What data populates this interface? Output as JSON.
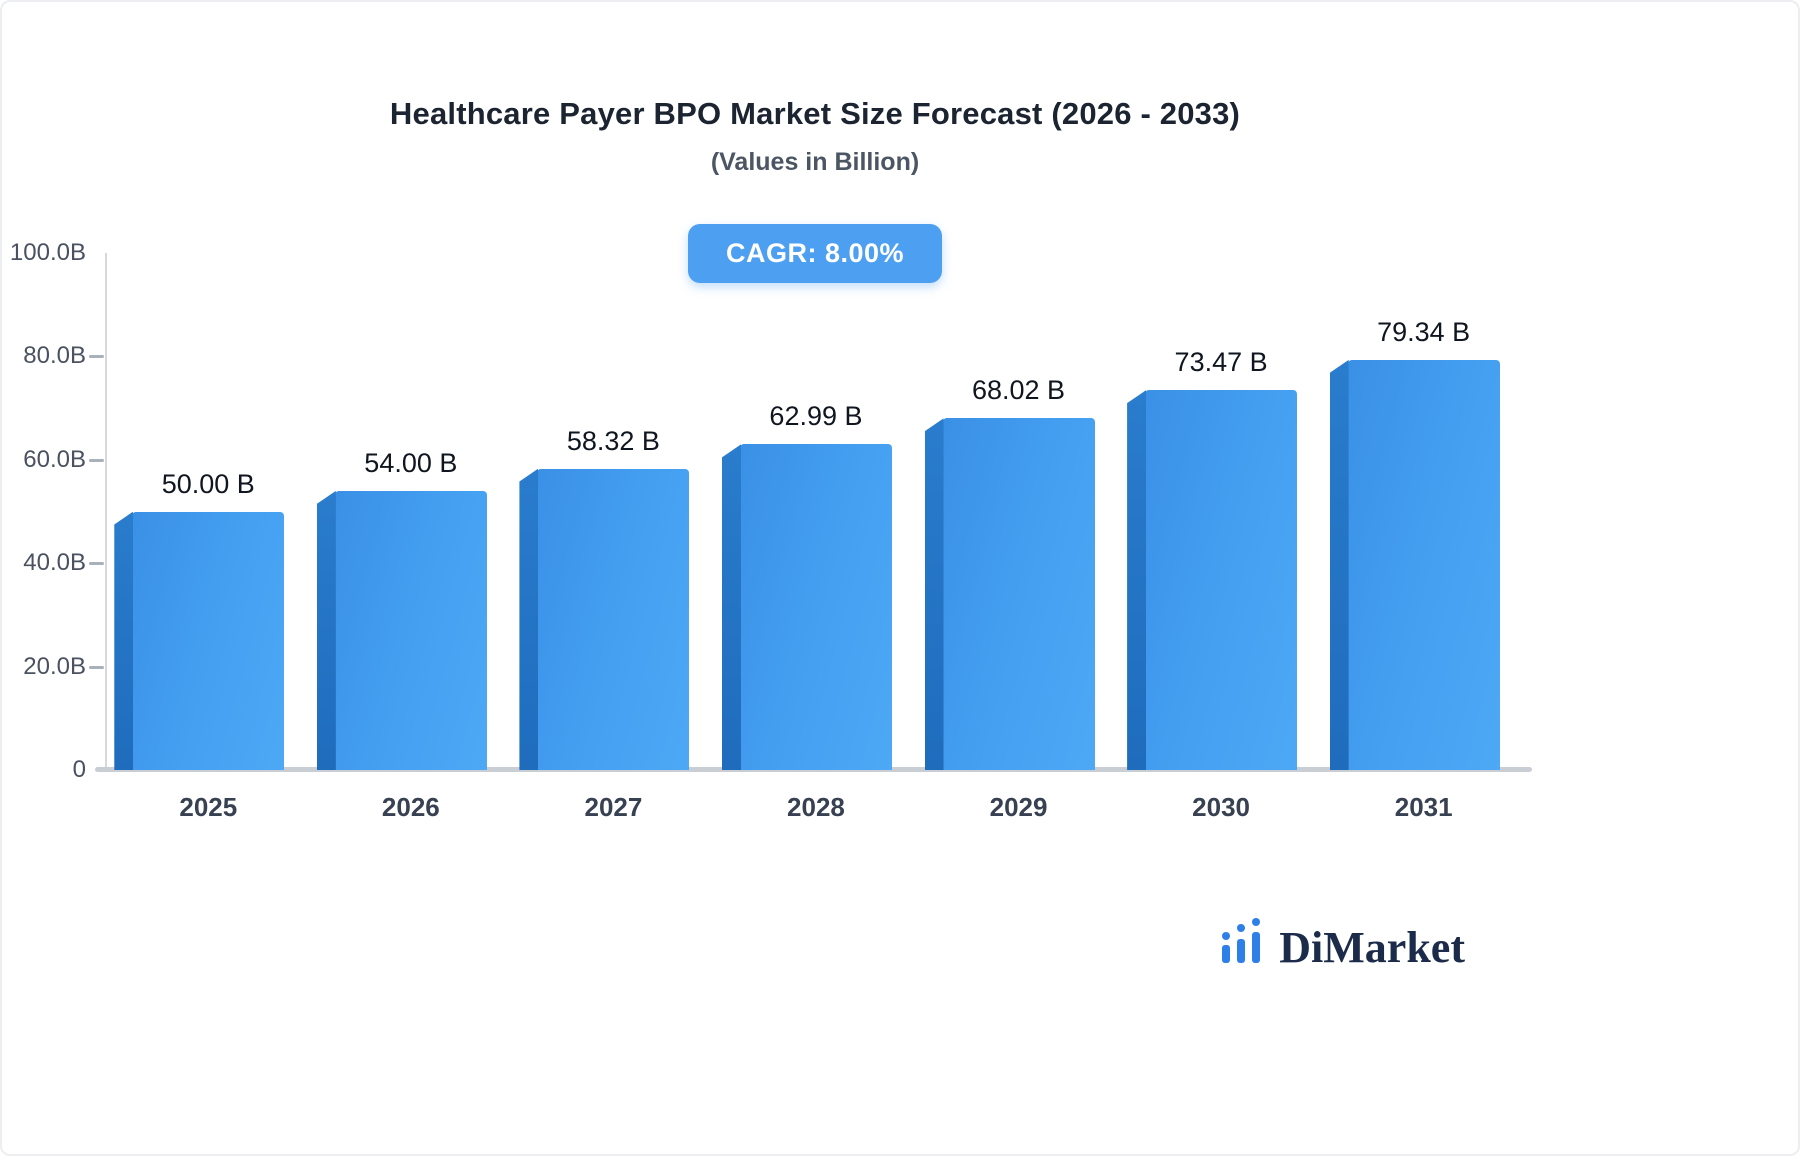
{
  "header": {
    "title": "Healthcare Payer BPO Market Size Forecast (2026 - 2033)",
    "subtitle": "(Values in Billion)"
  },
  "badge": {
    "label": "CAGR: 8.00%"
  },
  "chart_data": {
    "type": "bar",
    "title": "Healthcare Payer BPO Market Size Forecast (2026 - 2033)",
    "subtitle": "(Values in Billion)",
    "categories": [
      "2025",
      "2026",
      "2027",
      "2028",
      "2029",
      "2030",
      "2031"
    ],
    "values": [
      50.0,
      54.0,
      58.32,
      62.99,
      68.02,
      73.47,
      79.34
    ],
    "value_labels": [
      "50.00 B",
      "54.00 B",
      "58.32 B",
      "62.99 B",
      "68.02 B",
      "73.47 B",
      "79.34 B"
    ],
    "xlabel": "",
    "ylabel": "",
    "ylim": [
      0,
      100
    ],
    "y_ticks": [
      "100.0B",
      "80.0B",
      "60.0B",
      "40.0B",
      "20.0B",
      "0"
    ],
    "grid": false,
    "legend": false,
    "cagr": "8.00%",
    "bar_color": "#45a0f2",
    "bar_side_color": "#2272c3"
  },
  "logo": {
    "text": "DiMarket",
    "icon": "mini-bar-chart-icon",
    "icon_color": "#2e7fe8"
  },
  "colors": {
    "badge_bg": "#4d9ff1",
    "axis": "#c9ced5",
    "title_text": "#1b2430",
    "subtitle_text": "#4b5563"
  }
}
